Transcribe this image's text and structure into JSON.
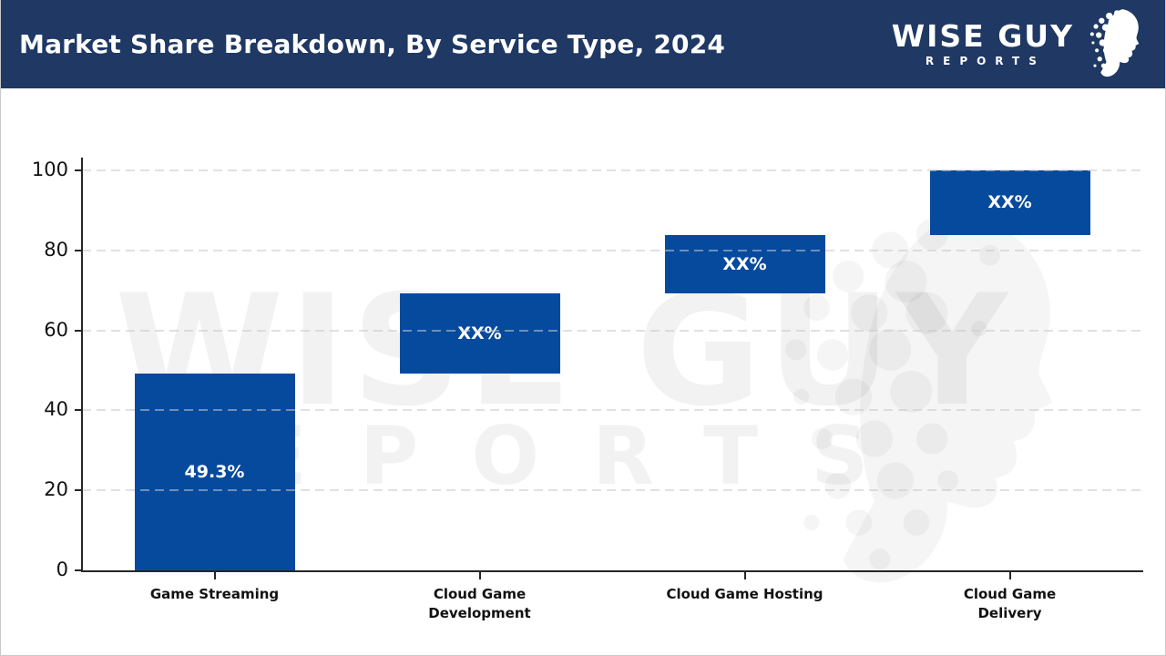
{
  "header": {
    "title": "Market Share Breakdown, By Service Type, 2024",
    "logo": {
      "line1": "WISE GUY",
      "line2": "REPORTS"
    }
  },
  "watermark": {
    "line1": "WISE GUY",
    "line2": "REPORTS"
  },
  "colors": {
    "header_bg": "#1f3864",
    "bar": "#064a9e",
    "axis": "#262626",
    "grid": "#d9d9d9",
    "title_text": "#ffffff",
    "bar_label_text": "#ffffff"
  },
  "chart_data": {
    "type": "bar",
    "subtype": "waterfall",
    "title": "Market Share Breakdown, By Service Type, 2024",
    "categories": [
      "Game Streaming",
      "Cloud Game Development",
      "Cloud Game Hosting",
      "Cloud Game Delivery"
    ],
    "category_tick_lines": [
      [
        "Game Streaming"
      ],
      [
        "Cloud Game",
        "Development"
      ],
      [
        "Cloud Game Hosting"
      ],
      [
        "Cloud Game",
        "Delivery"
      ]
    ],
    "segments": [
      {
        "category": "Game Streaming",
        "start": 0,
        "end": 49.3,
        "label": "49.3%"
      },
      {
        "category": "Cloud Game Development",
        "start": 49.3,
        "end": 69.2,
        "label": "XX%"
      },
      {
        "category": "Cloud Game Hosting",
        "start": 69.2,
        "end": 83.9,
        "label": "XX%"
      },
      {
        "category": "Cloud Game Delivery",
        "start": 83.9,
        "end": 100,
        "label": "XX%"
      }
    ],
    "xlabel": "",
    "ylabel": "",
    "ylim": [
      0,
      100
    ],
    "yticks": [
      0,
      20,
      40,
      60,
      80,
      100
    ],
    "grid": "horizontal-dashed",
    "legend": "none"
  }
}
